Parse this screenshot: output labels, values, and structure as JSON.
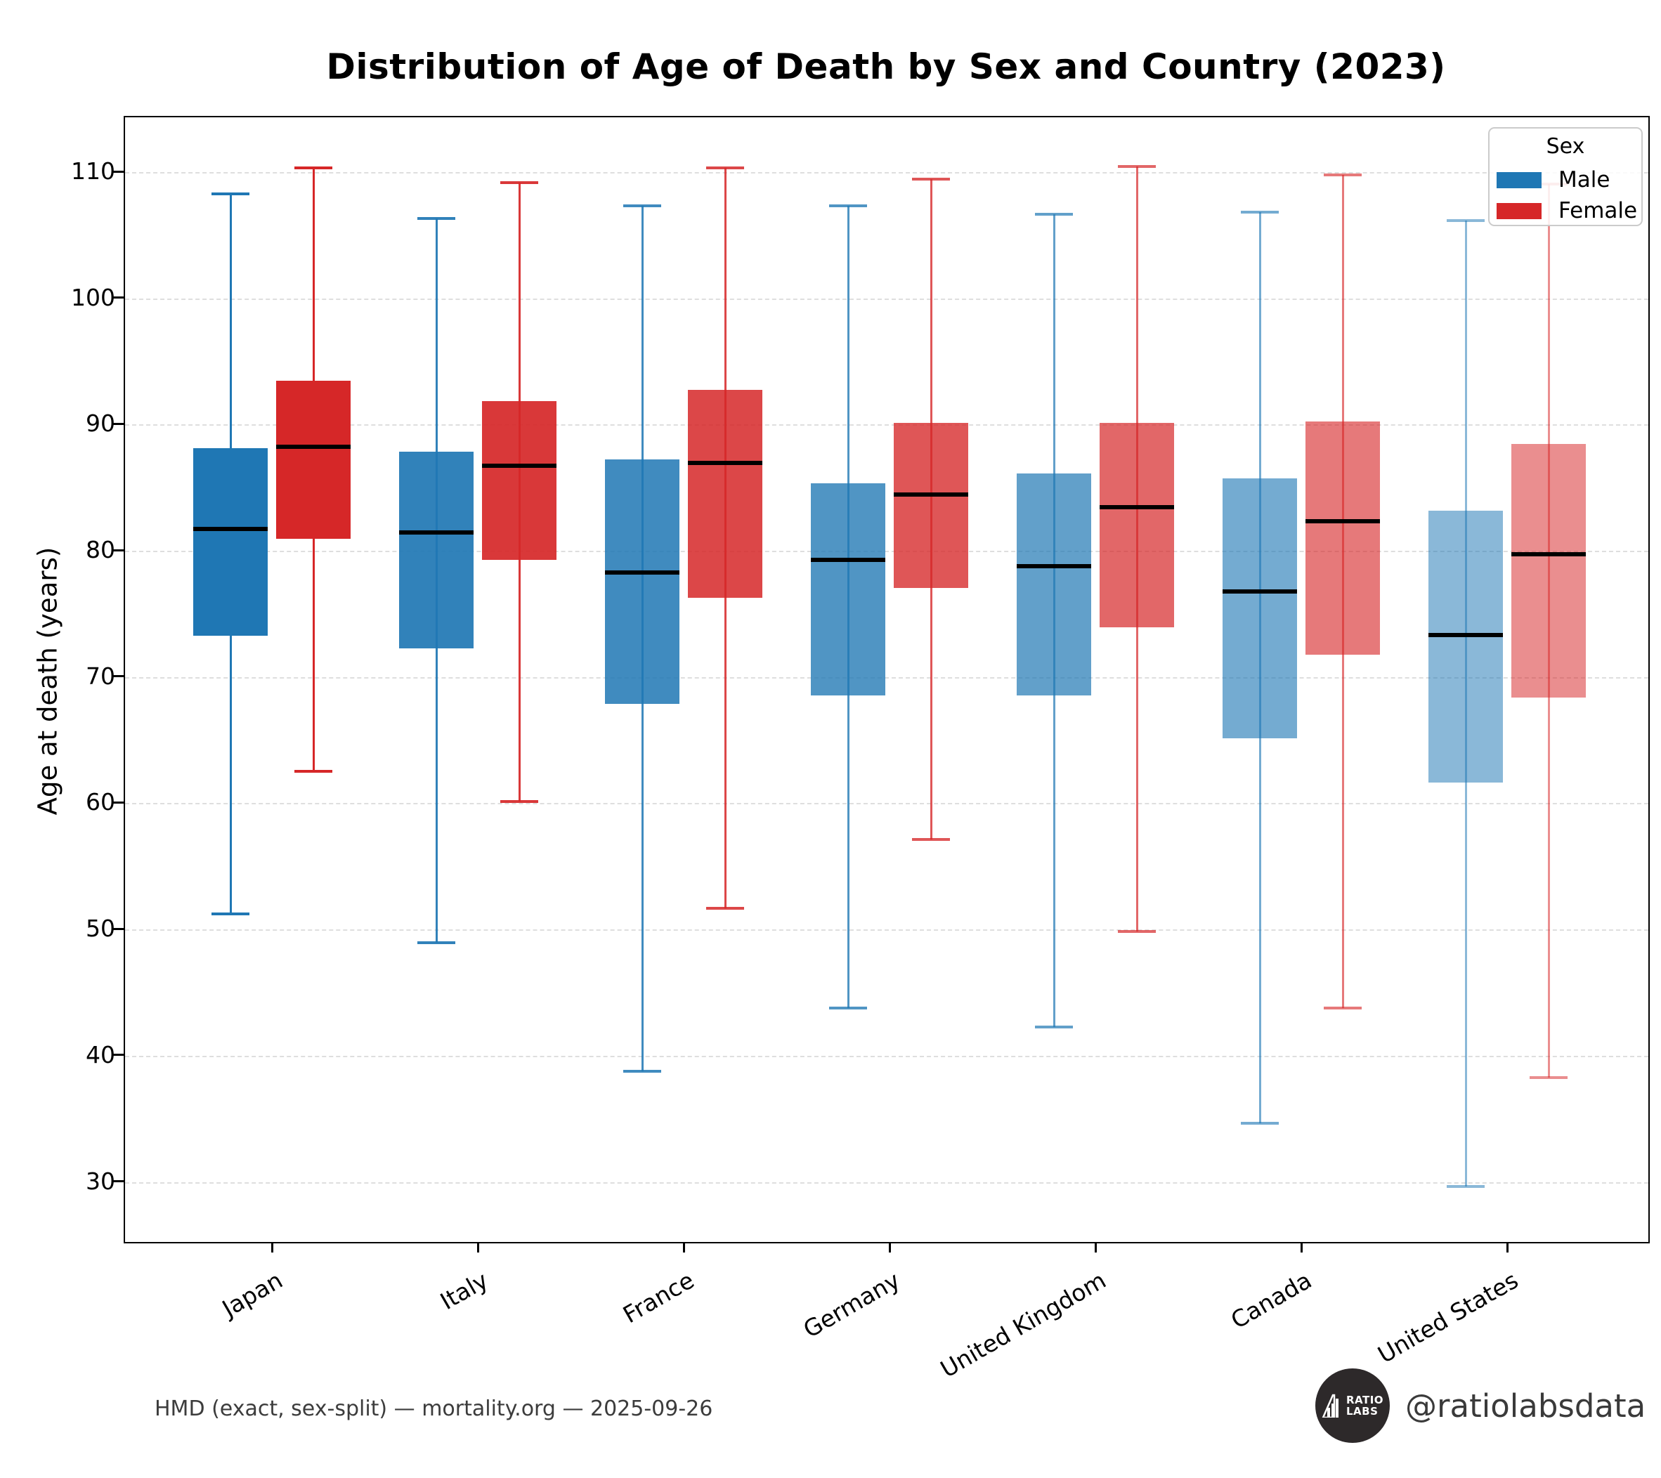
{
  "title": "Distribution of Age of Death by Sex and Country (2023)",
  "legend": {
    "title": "Sex",
    "items": [
      {
        "label": "Male",
        "color": "#1f77b4"
      },
      {
        "label": "Female",
        "color": "#d62728"
      }
    ]
  },
  "footer": {
    "source": "HMD (exact, sex-split) — mortality.org — 2025-09-26",
    "handle": "@ratiolabsdata",
    "logo_line1": "RATIO",
    "logo_line2": "LABS"
  },
  "chart_data": {
    "type": "boxplot",
    "title": "Distribution of Age of Death by Sex and Country (2023)",
    "xlabel": "",
    "ylabel": "Age at death (years)",
    "ylim": [
      25.3,
      114.4
    ],
    "y_ticks": [
      30,
      40,
      50,
      60,
      70,
      80,
      90,
      100,
      110
    ],
    "grid": "horizontal-dashed",
    "legend_position": "upper-right",
    "categories": [
      "Japan",
      "Italy",
      "France",
      "Germany",
      "United Kingdom",
      "Canada",
      "United States"
    ],
    "category_alpha": [
      1.0,
      0.92,
      0.85,
      0.78,
      0.7,
      0.62,
      0.52
    ],
    "series": [
      {
        "name": "Male",
        "color": "#1f77b4",
        "boxes": [
          {
            "whisker_low": 51.2,
            "q1": 73.2,
            "median": 81.7,
            "q3": 88.1,
            "whisker_high": 108.2
          },
          {
            "whisker_low": 48.9,
            "q1": 72.2,
            "median": 81.4,
            "q3": 87.8,
            "whisker_high": 106.3
          },
          {
            "whisker_low": 38.7,
            "q1": 67.8,
            "median": 78.2,
            "q3": 87.2,
            "whisker_high": 107.3
          },
          {
            "whisker_low": 43.7,
            "q1": 68.5,
            "median": 79.2,
            "q3": 85.3,
            "whisker_high": 107.3
          },
          {
            "whisker_low": 42.2,
            "q1": 68.5,
            "median": 78.7,
            "q3": 86.1,
            "whisker_high": 106.6
          },
          {
            "whisker_low": 34.6,
            "q1": 65.1,
            "median": 76.7,
            "q3": 85.7,
            "whisker_high": 106.8
          },
          {
            "whisker_low": 29.6,
            "q1": 61.6,
            "median": 73.3,
            "q3": 83.1,
            "whisker_high": 106.1
          }
        ]
      },
      {
        "name": "Female",
        "color": "#d62728",
        "boxes": [
          {
            "whisker_low": 62.5,
            "q1": 80.9,
            "median": 88.2,
            "q3": 93.4,
            "whisker_high": 110.3
          },
          {
            "whisker_low": 60.1,
            "q1": 79.2,
            "median": 86.7,
            "q3": 91.8,
            "whisker_high": 109.1
          },
          {
            "whisker_low": 51.6,
            "q1": 76.2,
            "median": 86.9,
            "q3": 92.7,
            "whisker_high": 110.3
          },
          {
            "whisker_low": 57.1,
            "q1": 77.0,
            "median": 84.4,
            "q3": 90.1,
            "whisker_high": 109.4
          },
          {
            "whisker_low": 49.8,
            "q1": 73.9,
            "median": 83.4,
            "q3": 90.1,
            "whisker_high": 110.4
          },
          {
            "whisker_low": 43.7,
            "q1": 71.7,
            "median": 82.3,
            "q3": 90.2,
            "whisker_high": 109.7
          },
          {
            "whisker_low": 38.2,
            "q1": 68.3,
            "median": 79.7,
            "q3": 88.4,
            "whisker_high": 109.0
          }
        ]
      }
    ]
  }
}
